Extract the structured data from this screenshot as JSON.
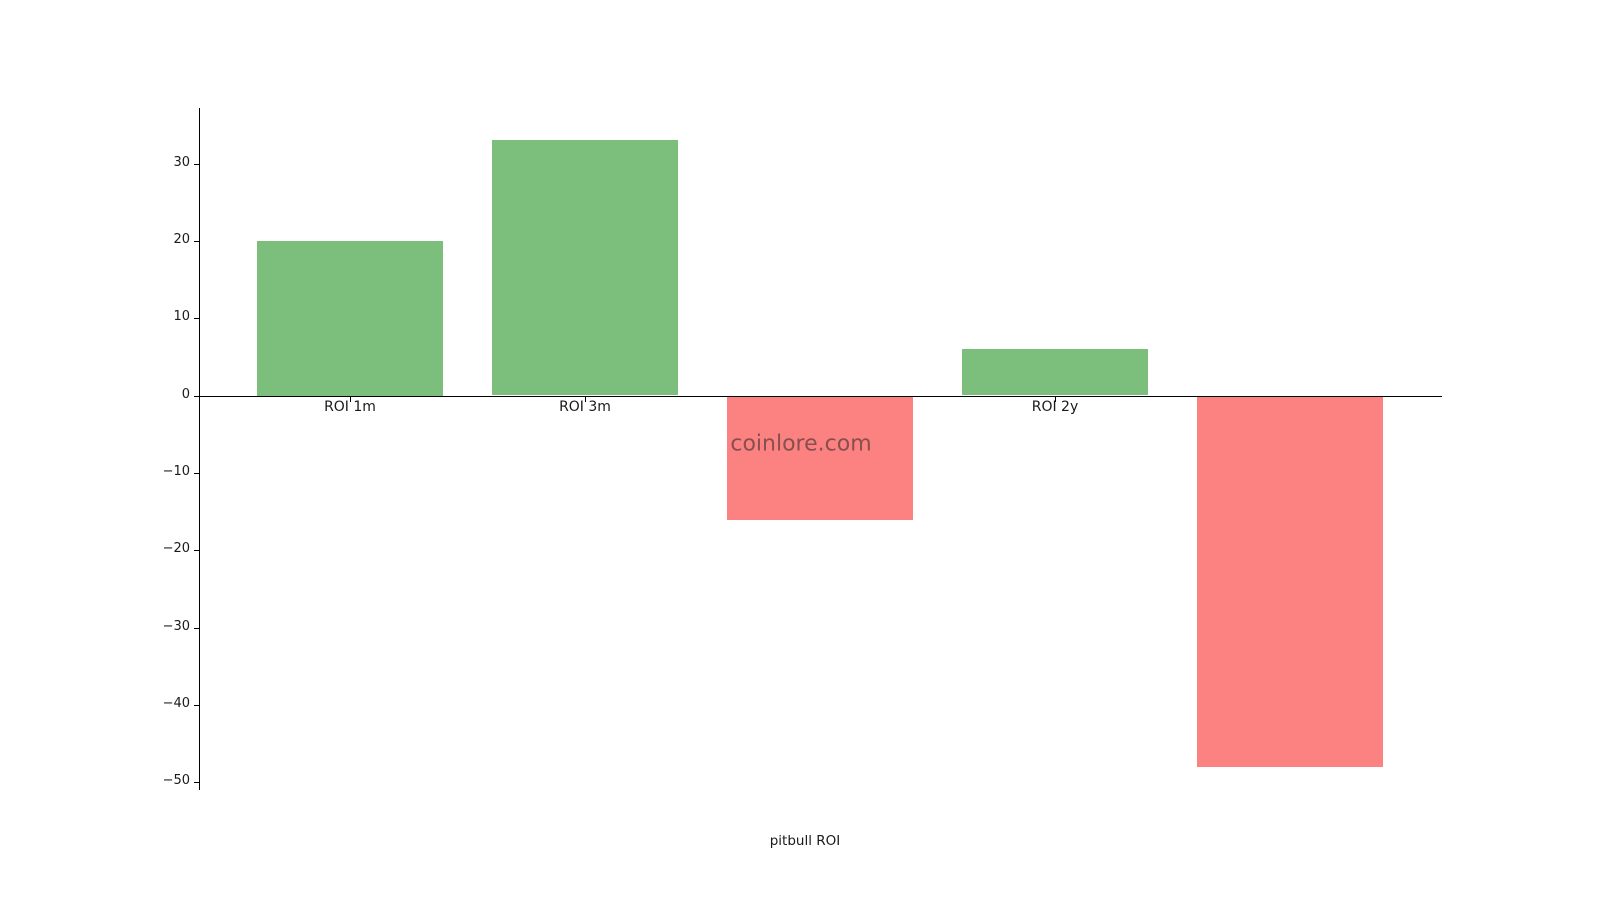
{
  "watermark": {
    "text": "coinlore.com",
    "color": "#282828"
  },
  "chart_data": {
    "type": "bar",
    "title": "",
    "xlabel": "pitbull ROI",
    "ylabel": "",
    "categories": [
      "ROI 1m",
      "ROI 3m",
      "",
      "ROI 2y",
      ""
    ],
    "values": [
      20,
      33,
      -16,
      6,
      -48
    ],
    "bar_colors": [
      "#7cbf7c",
      "#7cbf7c",
      "#fc8181",
      "#7cbf7c",
      "#fc8181"
    ],
    "colors": {
      "positive": "#7cbf7c",
      "negative": "#fc8181",
      "axis": "#000000",
      "tick_text": "#1a1a1a"
    },
    "yticks": [
      30,
      20,
      10,
      0,
      -10,
      -20,
      -30,
      -40,
      -50
    ],
    "ytick_labels": [
      "30",
      "20",
      "10",
      "0",
      "−10",
      "−20",
      "−30",
      "−40",
      "−50"
    ],
    "ylim": [
      -51,
      37.2
    ],
    "grid": false,
    "legend": false
  }
}
